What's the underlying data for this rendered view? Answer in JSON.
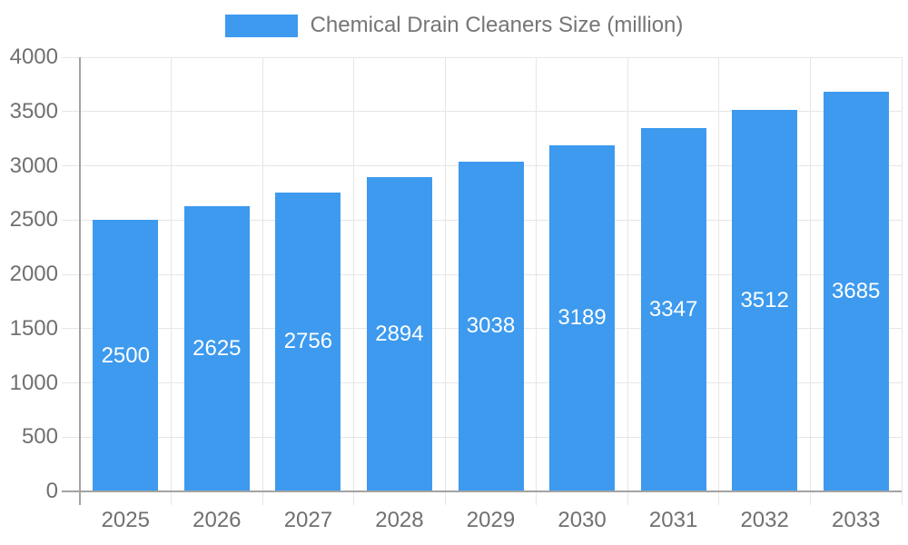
{
  "chart_data": {
    "type": "bar",
    "title": "Chemical Drain Cleaners Size (million)",
    "legend": {
      "label": "Chemical Drain Cleaners Size (million)",
      "position": "top-center"
    },
    "categories": [
      "2025",
      "2026",
      "2027",
      "2028",
      "2029",
      "2030",
      "2031",
      "2032",
      "2033"
    ],
    "series": [
      {
        "name": "Chemical Drain Cleaners Size (million)",
        "values": [
          2500,
          2625,
          2756,
          2894,
          3038,
          3189,
          3347,
          3512,
          3685
        ]
      }
    ],
    "value_labels": [
      "2500",
      "2625",
      "2756",
      "2894",
      "3038",
      "3189",
      "3347",
      "3512",
      "3685"
    ],
    "value_label_position": "inside-center",
    "xlabel": "",
    "ylabel": "",
    "ylim": [
      0,
      4000
    ],
    "yticks": [
      0,
      500,
      1000,
      1500,
      2000,
      2500,
      3000,
      3500,
      4000
    ],
    "grid": true,
    "colors": {
      "bar": "#3d9aee",
      "grid_line": "#e6e6e6",
      "axis_line": "#a3a3a3",
      "tick_label": "#707070",
      "legend_text": "#757575",
      "value_label": "#ffffff",
      "background": "#ffffff"
    }
  }
}
